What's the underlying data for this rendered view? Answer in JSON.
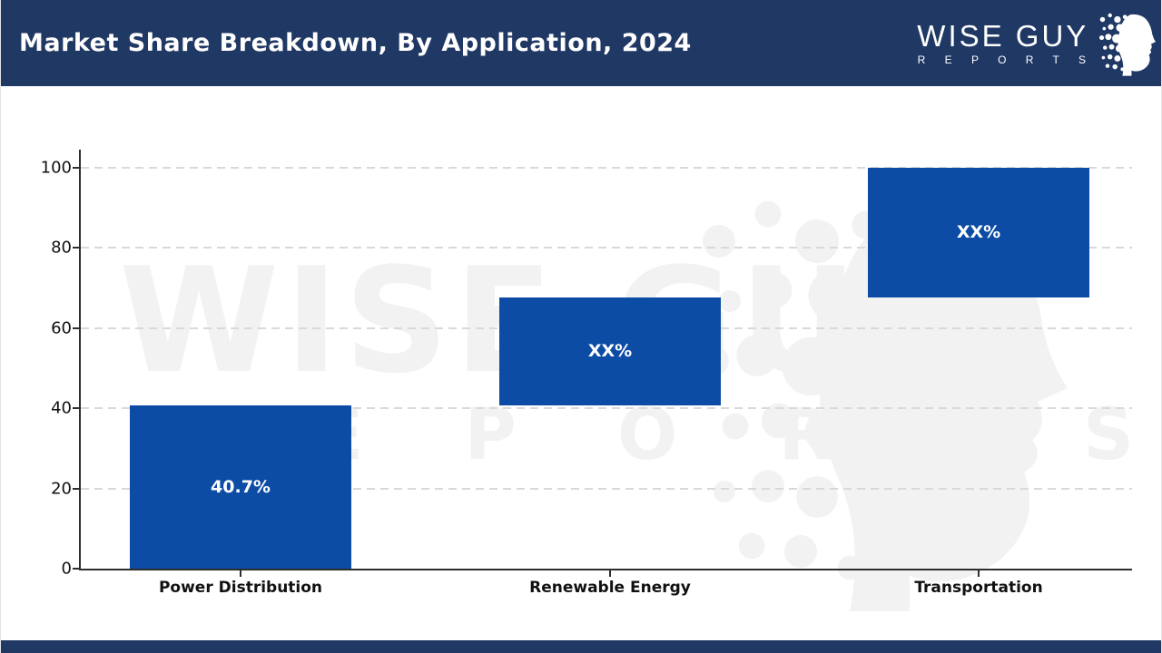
{
  "header": {
    "title": "Market Share Breakdown, By Application, 2024",
    "logo_line1": "WISE GUY",
    "logo_line2": "R E P O R T S"
  },
  "watermark": {
    "line1": "WISE GUY",
    "line2": "R E P O R T S"
  },
  "chart_data": {
    "type": "bar",
    "subtype": "waterfall",
    "title": "Market Share Breakdown, By Application, 2024",
    "categories": [
      "Power Distribution",
      "Renewable Energy",
      "Transportation"
    ],
    "bars": [
      {
        "category": "Power Distribution",
        "start": 0,
        "end": 40.7,
        "label": "40.7%"
      },
      {
        "category": "Renewable Energy",
        "start": 40.7,
        "end": 67.7,
        "label": "XX%"
      },
      {
        "category": "Transportation",
        "start": 67.7,
        "end": 100,
        "label": "XX%"
      }
    ],
    "xlabel": "",
    "ylabel": "",
    "ylim": [
      0,
      100
    ],
    "yticks": [
      0,
      20,
      40,
      60,
      80,
      100
    ],
    "grid": "dashed-horizontal",
    "legend": "none",
    "bar_color": "#0c4ca4",
    "bar_label_color": "#ffffff"
  },
  "colors": {
    "header_bg": "#203864",
    "footer_bg": "#203864",
    "bar": "#0c4ca4",
    "grid": "#d9d9d9",
    "axis": "#2e2e2e",
    "watermark": "#f2f2f2"
  }
}
